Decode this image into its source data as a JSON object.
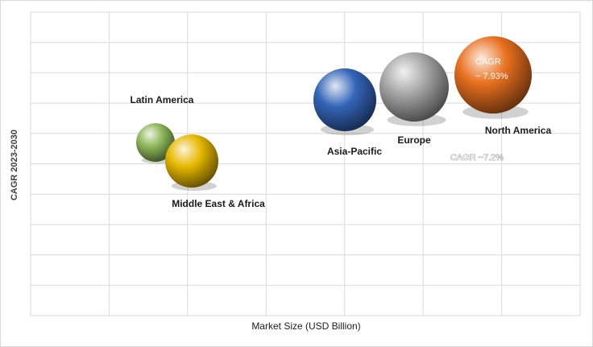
{
  "chart_data": {
    "type": "scatter",
    "subtype": "bubble",
    "xlabel": "Market Size (USD Billion)",
    "ylabel": "CAGR 2023-2030",
    "grid": true,
    "legend": "none",
    "series": [
      {
        "name": "Latin America",
        "color": "#8db85a"
      },
      {
        "name": "Middle East & Africa",
        "color": "#e6b800"
      },
      {
        "name": "Asia-Pacific",
        "color": "#3465b8"
      },
      {
        "name": "Europe",
        "color": "#a6a6a6"
      },
      {
        "name": "North America",
        "color": "#e8701f"
      }
    ],
    "annotations": [
      {
        "text": "CAGR",
        "near": "North America"
      },
      {
        "text": "~ 7.93%",
        "near": "North America"
      },
      {
        "text": "CAGR ~7.2%",
        "near": "North America"
      }
    ]
  }
}
